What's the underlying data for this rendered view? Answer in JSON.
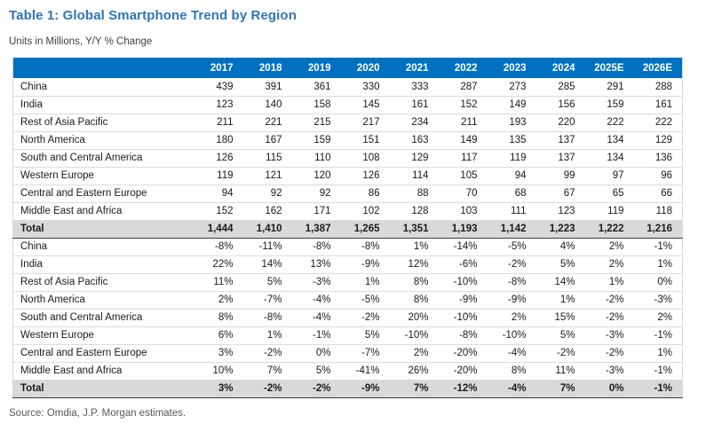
{
  "chart_data": {
    "type": "table",
    "title": "Table 1: Global Smartphone Trend by Region",
    "subtitle": "Units in Millions, Y/Y % Change",
    "source": "Source: Omdia, J.P. Morgan estimates.",
    "columns": [
      "2017",
      "2018",
      "2019",
      "2020",
      "2021",
      "2022",
      "2023",
      "2024",
      "2025E",
      "2026E"
    ],
    "sections": [
      {
        "name": "units-in-millions",
        "rows": [
          {
            "label": "China",
            "values": [
              "439",
              "391",
              "361",
              "330",
              "333",
              "287",
              "273",
              "285",
              "291",
              "288"
            ]
          },
          {
            "label": "India",
            "values": [
              "123",
              "140",
              "158",
              "145",
              "161",
              "152",
              "149",
              "156",
              "159",
              "161"
            ]
          },
          {
            "label": "Rest of Asia Pacific",
            "values": [
              "211",
              "221",
              "215",
              "217",
              "234",
              "211",
              "193",
              "220",
              "222",
              "222"
            ]
          },
          {
            "label": "North America",
            "values": [
              "180",
              "167",
              "159",
              "151",
              "163",
              "149",
              "135",
              "137",
              "134",
              "129"
            ]
          },
          {
            "label": "South and Central America",
            "values": [
              "126",
              "115",
              "110",
              "108",
              "129",
              "117",
              "119",
              "137",
              "134",
              "136"
            ]
          },
          {
            "label": "Western Europe",
            "values": [
              "119",
              "121",
              "120",
              "126",
              "114",
              "105",
              "94",
              "99",
              "97",
              "96"
            ]
          },
          {
            "label": "Central and Eastern Europe",
            "values": [
              "94",
              "92",
              "92",
              "86",
              "88",
              "70",
              "68",
              "67",
              "65",
              "66"
            ]
          },
          {
            "label": "Middle East and Africa",
            "values": [
              "152",
              "162",
              "171",
              "102",
              "128",
              "103",
              "111",
              "123",
              "119",
              "118"
            ]
          }
        ],
        "total": {
          "label": "Total",
          "values": [
            "1,444",
            "1,410",
            "1,387",
            "1,265",
            "1,351",
            "1,193",
            "1,142",
            "1,223",
            "1,222",
            "1,216"
          ]
        }
      },
      {
        "name": "yoy-percent-change",
        "rows": [
          {
            "label": "China",
            "values": [
              "-8%",
              "-11%",
              "-8%",
              "-8%",
              "1%",
              "-14%",
              "-5%",
              "4%",
              "2%",
              "-1%"
            ]
          },
          {
            "label": "India",
            "values": [
              "22%",
              "14%",
              "13%",
              "-9%",
              "12%",
              "-6%",
              "-2%",
              "5%",
              "2%",
              "1%"
            ]
          },
          {
            "label": "Rest of Asia Pacific",
            "values": [
              "11%",
              "5%",
              "-3%",
              "1%",
              "8%",
              "-10%",
              "-8%",
              "14%",
              "1%",
              "0%"
            ]
          },
          {
            "label": "North America",
            "values": [
              "2%",
              "-7%",
              "-4%",
              "-5%",
              "8%",
              "-9%",
              "-9%",
              "1%",
              "-2%",
              "-3%"
            ]
          },
          {
            "label": "South and Central America",
            "values": [
              "8%",
              "-8%",
              "-4%",
              "-2%",
              "20%",
              "-10%",
              "2%",
              "15%",
              "-2%",
              "2%"
            ]
          },
          {
            "label": "Western Europe",
            "values": [
              "6%",
              "1%",
              "-1%",
              "5%",
              "-10%",
              "-8%",
              "-10%",
              "5%",
              "-3%",
              "-1%"
            ]
          },
          {
            "label": "Central and Eastern Europe",
            "values": [
              "3%",
              "-2%",
              "0%",
              "-7%",
              "2%",
              "-20%",
              "-4%",
              "-2%",
              "-2%",
              "1%"
            ]
          },
          {
            "label": "Middle East and Africa",
            "values": [
              "10%",
              "7%",
              "5%",
              "-41%",
              "26%",
              "-20%",
              "8%",
              "11%",
              "-3%",
              "-1%"
            ]
          }
        ],
        "total": {
          "label": "Total",
          "values": [
            "3%",
            "-2%",
            "-2%",
            "-9%",
            "7%",
            "-12%",
            "-4%",
            "7%",
            "0%",
            "-1%"
          ]
        }
      }
    ],
    "colors": {
      "header_bg": "#0070C0",
      "header_text": "#FFFFFF",
      "title_blue": "#2E75B6",
      "total_row_bg": "#D9D9D9",
      "row_divider": "#DCDCDC",
      "source_text": "#595959"
    }
  }
}
